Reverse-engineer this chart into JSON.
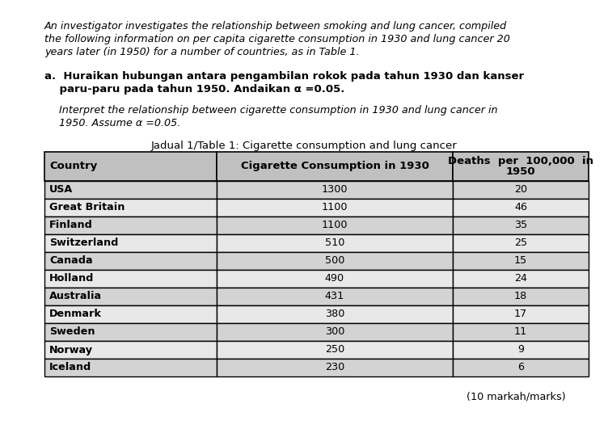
{
  "intro_text_line1": "An investigator investigates the relationship between smoking and lung cancer, compiled",
  "intro_text_line2": "the following information on per capita cigarette consumption in 1930 and lung cancer 20",
  "intro_text_line3": "years later (in 1950) for a number of countries, as in Table 1.",
  "question_malay_line1": "a.  Huraikan hubungan antara pengambilan rokok pada tahun 1930 dan kanser",
  "question_malay_line2": "    paru-paru pada tahun 1950. Andaikan α =0.05.",
  "question_english_line1": "Interpret the relationship between cigarette consumption in 1930 and lung cancer in",
  "question_english_line2": "1950. Assume α =0.05.",
  "table_title": "Jadual 1/Table 1: Cigarette consumption and lung cancer",
  "col_headers": [
    "Country",
    "Cigarette Consumption in 1930",
    "Deaths per 100,000 in\n1950"
  ],
  "countries": [
    "USA",
    "Great Britain",
    "Finland",
    "Switzerland",
    "Canada",
    "Holland",
    "Australia",
    "Denmark",
    "Sweden",
    "Norway",
    "Iceland"
  ],
  "cigarette_consumption": [
    1300,
    1100,
    1100,
    510,
    500,
    490,
    431,
    380,
    300,
    250,
    230
  ],
  "deaths": [
    20,
    46,
    35,
    25,
    15,
    24,
    18,
    17,
    11,
    9,
    6
  ],
  "footer": "(10 markah/marks)",
  "bg_color": "#ffffff",
  "header_bg": "#c0c0c0",
  "row_bg_even": "#d3d3d3",
  "row_bg_odd": "#e8e8e8",
  "border_color": "#000000"
}
